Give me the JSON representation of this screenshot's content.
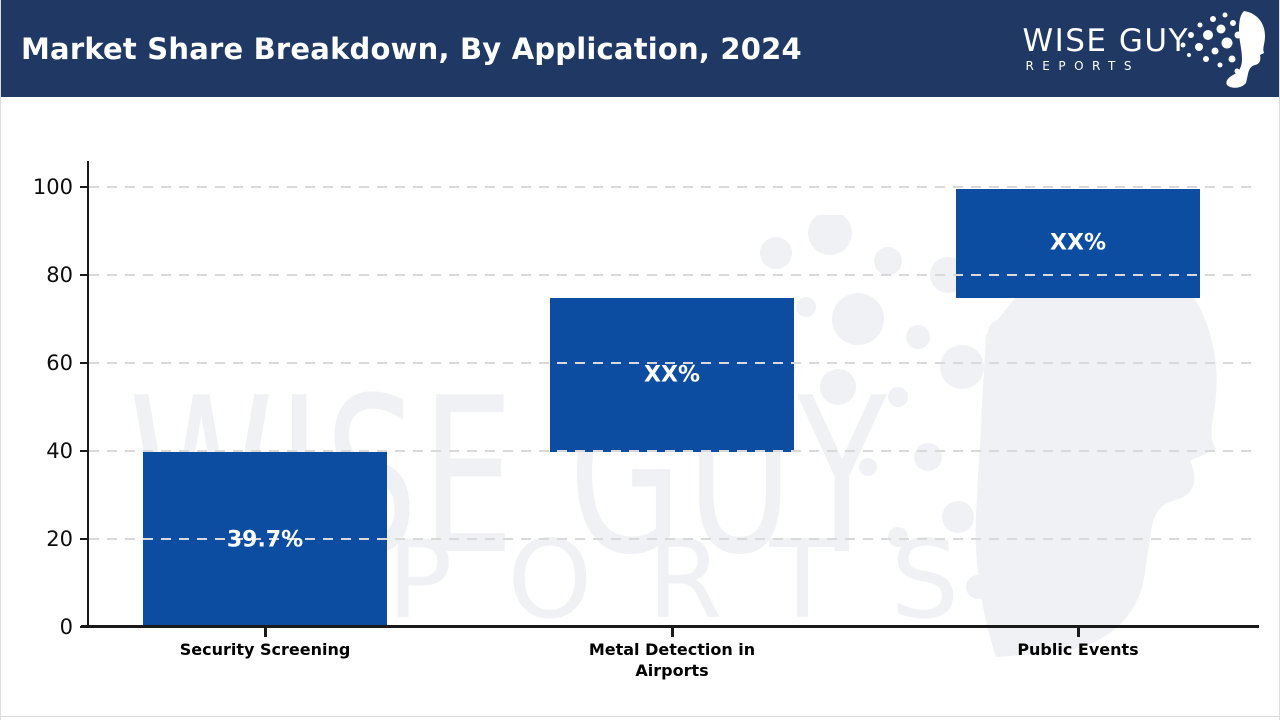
{
  "header": {
    "title": "Market Share Breakdown, By Application, 2024",
    "logo": {
      "line1": "WISE GUY",
      "line2": "REPORTS"
    }
  },
  "watermark": {
    "line1": "WISE GUY",
    "line2": "REPORTS"
  },
  "chart_data": {
    "type": "bar",
    "subtype": "floating segment bars (waterfall-style market share breakdown)",
    "title": "Market Share Breakdown, By Application, 2024",
    "categories": [
      "Security Screening",
      "Metal Detection in\nAirports",
      "Public Events"
    ],
    "series": [
      {
        "name": "Market share by application",
        "segments": [
          {
            "category": "Security Screening",
            "start": 0,
            "end": 39.7,
            "label": "39.7%"
          },
          {
            "category": "Metal Detection in Airports",
            "start": 39.7,
            "end": 74.8,
            "label": "XX%"
          },
          {
            "category": "Public Events",
            "start": 74.8,
            "end": 99.6,
            "label": "XX%"
          }
        ]
      }
    ],
    "xlabel": "",
    "ylabel": "",
    "ylim": [
      0,
      105
    ],
    "yticks": [
      0,
      20,
      40,
      60,
      80,
      100
    ],
    "grid": "horizontal dashed gridlines drawn over bars",
    "legend": "none",
    "colors": {
      "bar": "#0c4da2",
      "bar_label": "#ffffff",
      "axis": "#1a1a1a",
      "gridline": "#d9d9d9",
      "tick_label": "#0d0d0d",
      "header_bg": "#1f3864",
      "header_text": "#ffffff",
      "watermark": "#f0f1f4",
      "background": "#ffffff"
    }
  }
}
